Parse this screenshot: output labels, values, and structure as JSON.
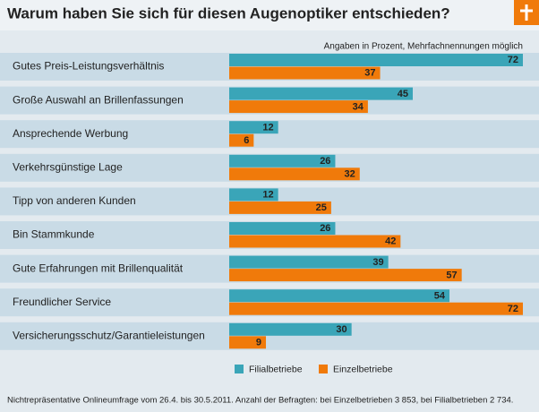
{
  "chart_data": {
    "type": "hbar",
    "title": "Warum haben Sie sich für diesen Augenoptiker entschieden?",
    "subtitle": "Angaben in Prozent, Mehrfachnennungen möglich",
    "categories": [
      "Gutes Preis-Leistungsverhältnis",
      "Große Auswahl an Brillenfassungen",
      "Ansprechende Werbung",
      "Verkehrsgünstige Lage",
      "Tipp von anderen Kunden",
      "Bin Stammkunde",
      "Gute Erfahrungen mit Brillenqualität",
      "Freundlicher Service",
      "Versicherungsschutz/Garantieleistungen"
    ],
    "series": [
      {
        "name": "Filialbetriebe",
        "color": "#3aa5b8",
        "values": [
          72,
          45,
          12,
          26,
          12,
          26,
          39,
          54,
          30
        ]
      },
      {
        "name": "Einzelbetriebe",
        "color": "#f07a0a",
        "values": [
          37,
          34,
          6,
          32,
          25,
          42,
          57,
          72,
          9
        ]
      }
    ],
    "legend": "bottom",
    "footnote": "Nichtrepräsentative Onlineumfrage vom 26.4. bis 30.5.2011. Anzahl der Befragten: bei Einzelbetrieben 3 853, bei Filialbetrieben 2 734."
  }
}
